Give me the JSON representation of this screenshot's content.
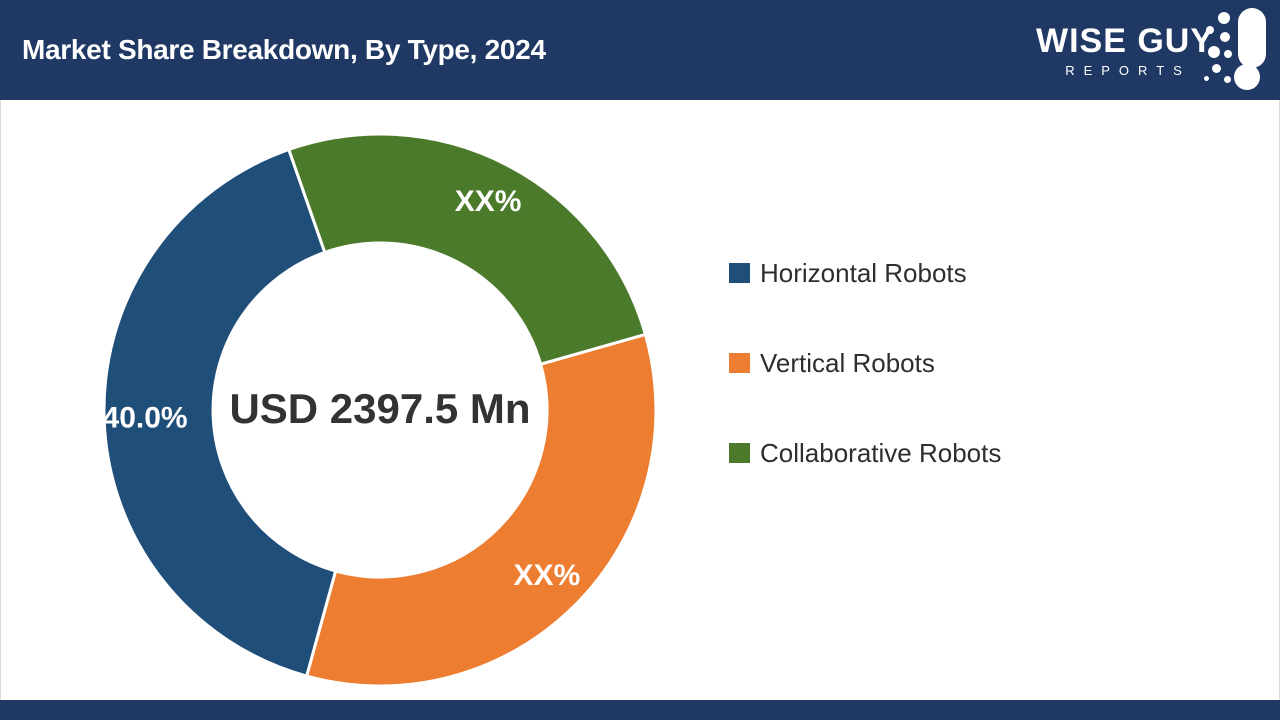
{
  "header": {
    "title": "Market Share Breakdown, By Type, 2024",
    "bg_color": "#1F3864",
    "text_color": "#FFFFFF"
  },
  "logo": {
    "line1": "WISE GUY",
    "line2": "REPORTS"
  },
  "watermark": {
    "line1": "WISE GUY",
    "line2": "R E P O R T S"
  },
  "chart_data": {
    "type": "donut",
    "title": "Market Share Breakdown, By Type, 2024",
    "center_label": "USD 2397.5 Mn",
    "legend_position": "right",
    "label_color": "#FFFFFF",
    "segments": [
      {
        "name": "Horizontal Robots",
        "value_label": "40.0%",
        "percent": 40.0,
        "color": "#1F4E79",
        "start_deg": 195.4,
        "end_deg": 340.7
      },
      {
        "name": "Vertical Robots",
        "value_label": "XX%",
        "percent": 33.7,
        "color": "#ED7D31",
        "start_deg": 74.1,
        "end_deg": 195.4
      },
      {
        "name": "Collaborative Robots",
        "value_label": "XX%",
        "percent": 26.3,
        "color": "#4B7A2B",
        "start_deg": -19.3,
        "end_deg": 74.1
      }
    ]
  },
  "legend": {
    "items": [
      {
        "label": "Horizontal Robots",
        "color": "#1F4E79"
      },
      {
        "label": "Vertical Robots",
        "color": "#ED7D31"
      },
      {
        "label": "Collaborative Robots",
        "color": "#4B7A2B"
      }
    ]
  }
}
